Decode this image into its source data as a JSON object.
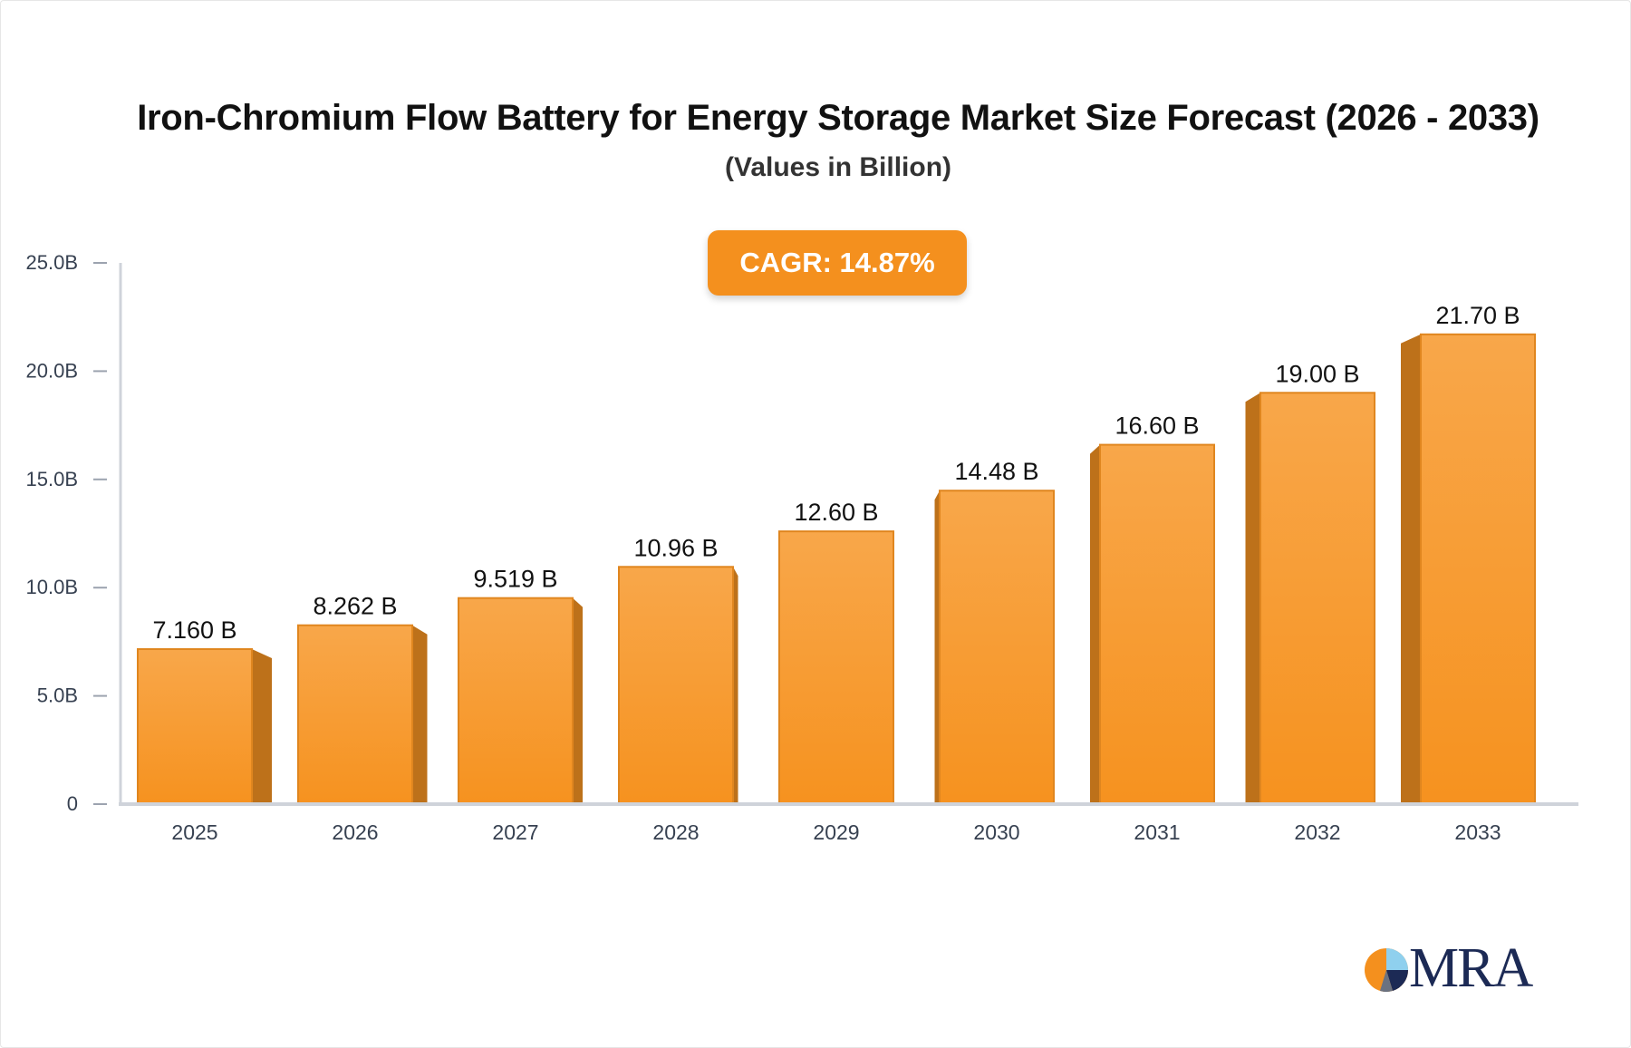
{
  "chart_data": {
    "type": "bar",
    "title": "Iron-Chromium Flow Battery for Energy Storage Market Size Forecast (2026 - 2033)",
    "subtitle": "(Values in Billion)",
    "annotation": "CAGR: 14.87%",
    "categories": [
      "2025",
      "2026",
      "2027",
      "2028",
      "2029",
      "2030",
      "2031",
      "2032",
      "2033"
    ],
    "values": [
      7.16,
      8.262,
      9.519,
      10.96,
      12.6,
      14.48,
      16.6,
      19.0,
      21.7
    ],
    "data_labels": [
      "7.160 B",
      "8.262 B",
      "9.519 B",
      "10.96 B",
      "12.60 B",
      "14.48 B",
      "16.60 B",
      "19.00 B",
      "21.70 B"
    ],
    "yticks": [
      "0",
      "5.0B",
      "10.0B",
      "15.0B",
      "20.0B",
      "25.0B"
    ],
    "ylim": [
      0,
      25
    ],
    "xlabel": "",
    "ylabel": "",
    "grid": false,
    "colors": {
      "bar_top": "#f8a74a",
      "bar_bottom": "#f6921f",
      "bar_side": "#bd711a",
      "bar_edge": "#e0861f",
      "axis": "#cfd3da"
    }
  },
  "logo": {
    "text": "MRA"
  }
}
